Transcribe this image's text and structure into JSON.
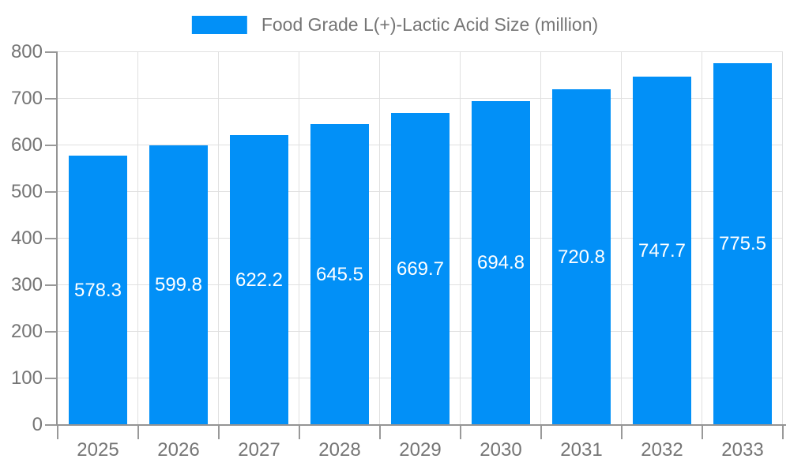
{
  "legend": {
    "label": "Food Grade L(+)-Lactic Acid Size (million)"
  },
  "colors": {
    "bar": "#0290f7",
    "axis": "#949494",
    "tick": "#999999",
    "grid": "#e0e0e0",
    "text": "#757575",
    "value_label": "#ffffff",
    "background": "#ffffff"
  },
  "chart_data": {
    "type": "bar",
    "title": "Food Grade L(+)-Lactic Acid Size (million)",
    "series_name": "Food Grade L(+)-Lactic Acid Size (million)",
    "categories": [
      "2025",
      "2026",
      "2027",
      "2028",
      "2029",
      "2030",
      "2031",
      "2032",
      "2033"
    ],
    "values": [
      578.3,
      599.8,
      622.2,
      645.5,
      669.7,
      694.8,
      720.8,
      747.7,
      775.5
    ],
    "xlabel": "",
    "ylabel": "",
    "ylim": [
      0,
      800
    ],
    "ytick_step": 100,
    "grid": true,
    "legend_position": "top",
    "value_labels": "inside-center"
  }
}
